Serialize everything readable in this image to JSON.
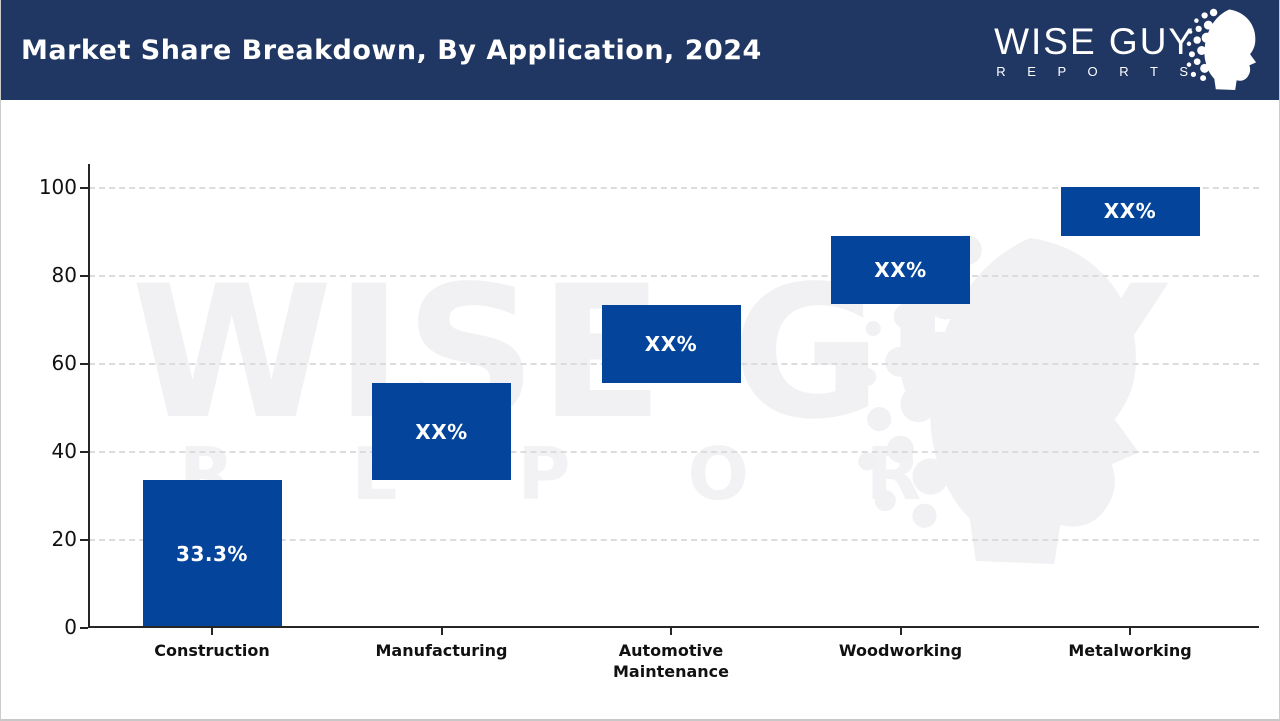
{
  "header": {
    "title": "Market Share Breakdown, By Application, 2024",
    "bg_color": "#213763",
    "logo": {
      "line1": "WISE GUY",
      "line2": "R E P O R T S"
    }
  },
  "watermark": {
    "line1": "WISE GUY",
    "line2": "R E P O R T S"
  },
  "chart_data": {
    "type": "bar",
    "subtype": "waterfall",
    "title": "Market Share Breakdown, By Application, 2024",
    "categories": [
      "Construction",
      "Manufacturing",
      "Automotive\nMaintenance",
      "Woodworking",
      "Metalworking"
    ],
    "bars": [
      {
        "category": "Construction",
        "start": 0,
        "end": 33.3,
        "label": "33.3%"
      },
      {
        "category": "Manufacturing",
        "start": 33.3,
        "end": 55.5,
        "label": "XX%"
      },
      {
        "category": "Automotive Maintenance",
        "start": 55.5,
        "end": 73.3,
        "label": "XX%"
      },
      {
        "category": "Woodworking",
        "start": 73.3,
        "end": 88.9,
        "label": "XX%"
      },
      {
        "category": "Metalworking",
        "start": 88.9,
        "end": 100,
        "label": "XX%"
      }
    ],
    "y_ticks": [
      0,
      20,
      40,
      60,
      80,
      100
    ],
    "ylim": [
      0,
      105
    ],
    "grid": "horizontal-dashed",
    "legend": "none",
    "bar_color": "#05449B",
    "bar_label_color": "#ffffff",
    "axis_color": "#262626",
    "gridline_color": "#dcdcdc"
  }
}
